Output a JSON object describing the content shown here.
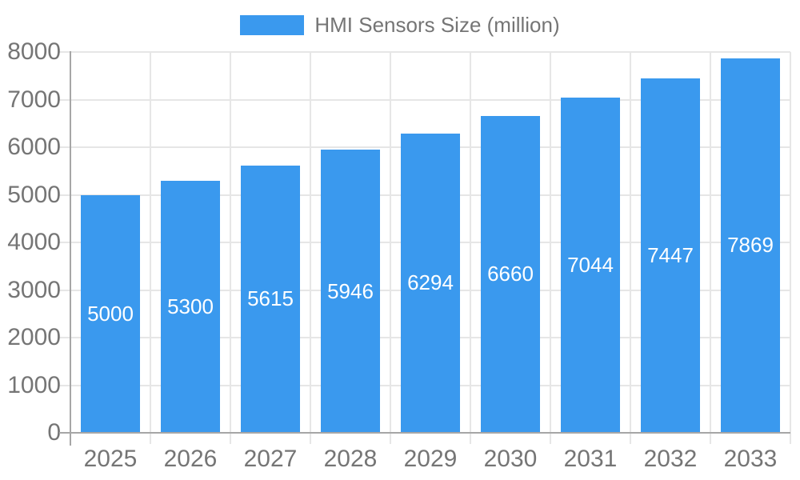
{
  "legend": {
    "label": "HMI Sensors Size (million)"
  },
  "colors": {
    "bar": "#3a99ee",
    "axis_text": "#757575",
    "bar_label_text": "#ffffff",
    "gridline": "#e6e6e6",
    "axis_line": "#a6a6a6",
    "background": "#ffffff"
  },
  "chart_data": {
    "type": "bar",
    "title": "",
    "legend": "HMI Sensors Size (million)",
    "legend_position": "top",
    "categories": [
      "2025",
      "2026",
      "2027",
      "2028",
      "2029",
      "2030",
      "2031",
      "2032",
      "2033"
    ],
    "series": [
      {
        "name": "HMI Sensors Size (million)",
        "values": [
          5000,
          5300,
          5615,
          5946,
          6294,
          6660,
          7044,
          7447,
          7869
        ]
      }
    ],
    "bar_labels": [
      "5000",
      "5300",
      "5615",
      "5946",
      "6294",
      "6660",
      "7044",
      "7447",
      "7869"
    ],
    "xlabel": "",
    "ylabel": "",
    "ylim": [
      0,
      8000
    ],
    "yticks": [
      0,
      1000,
      2000,
      3000,
      4000,
      5000,
      6000,
      7000,
      8000
    ],
    "grid": true
  }
}
